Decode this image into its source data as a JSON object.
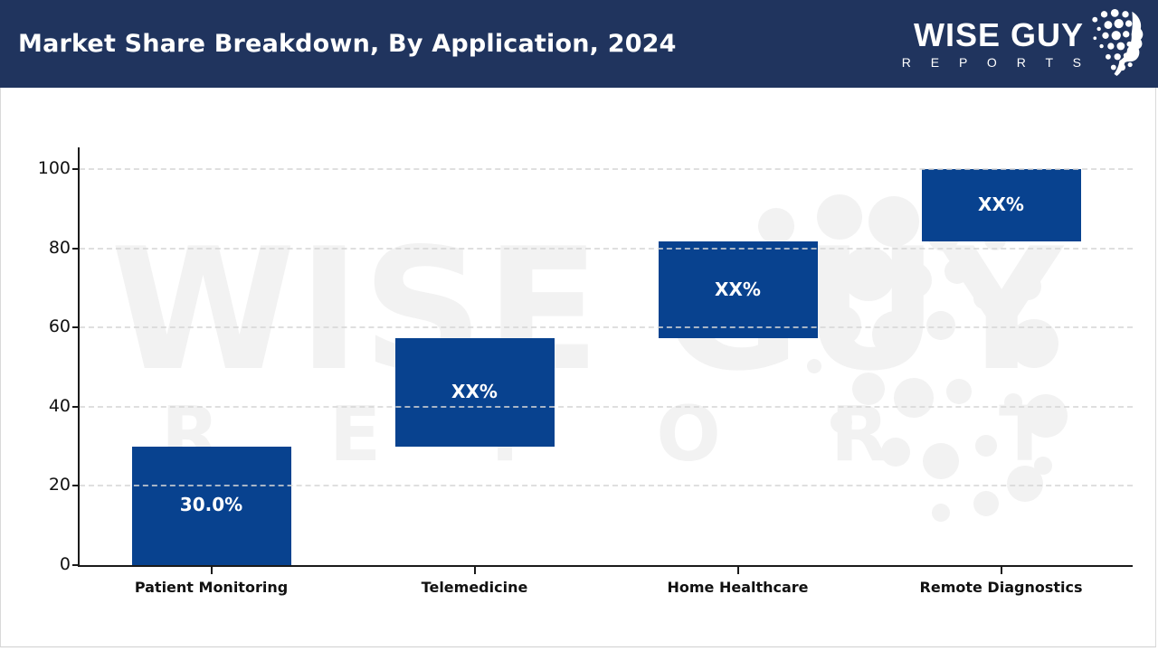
{
  "header": {
    "title": "Market Share Breakdown, By Application, 2024",
    "logo": {
      "name_top": "WISE GUY",
      "name_bottom": "R E P O R T S"
    }
  },
  "watermark": {
    "line1": "WISE GUY",
    "line2": "R E P O R T S"
  },
  "colors": {
    "header_bg": "#20345E",
    "bar_fill": "#08428F",
    "grid": "#D6D6D6",
    "axis": "#1A1A1A",
    "value_label": "#FFFFFF",
    "watermark": "#F2F2F2"
  },
  "chart_data": {
    "type": "bar",
    "variant": "waterfall",
    "title": "Market Share Breakdown, By Application, 2024",
    "categories": [
      "Patient Monitoring",
      "Telemedicine",
      "Home Healthcare",
      "Remote Diagnostics"
    ],
    "segments": [
      {
        "category": "Patient Monitoring",
        "label": "30.0%",
        "start": 0,
        "end": 30.0
      },
      {
        "category": "Telemedicine",
        "label": "XX%",
        "start": 30.0,
        "end": 57.2
      },
      {
        "category": "Home Healthcare",
        "label": "XX%",
        "start": 57.2,
        "end": 81.8
      },
      {
        "category": "Remote Diagnostics",
        "label": "XX%",
        "start": 81.8,
        "end": 100.0
      }
    ],
    "ylim": [
      0,
      100
    ],
    "yticks": [
      0,
      20,
      40,
      60,
      80,
      100
    ],
    "xlabel": "",
    "ylabel": "",
    "grid": "horizontal-dashed",
    "legend": "none"
  }
}
